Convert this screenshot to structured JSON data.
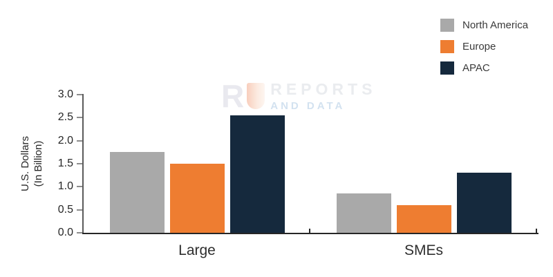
{
  "chart_data": {
    "type": "bar",
    "title": "",
    "categories": [
      "Large",
      "SMEs"
    ],
    "series": [
      {
        "name": "North America",
        "color": "#a9a9a9",
        "values": [
          1.75,
          0.85
        ]
      },
      {
        "name": "Europe",
        "color": "#ee7d31",
        "values": [
          1.5,
          0.6
        ]
      },
      {
        "name": "APAC",
        "color": "#15293d",
        "values": [
          2.55,
          1.3
        ]
      }
    ],
    "ylabel": "U.S. Dollars (In Billion)",
    "ylabel_lines": [
      "U.S. Dollars",
      "(In Billion)"
    ],
    "ylim": [
      0,
      3
    ],
    "yticks": [
      "0.0",
      "0.5",
      "1.0",
      "1.5",
      "2.0",
      "2.5",
      "3.0"
    ],
    "grid": false,
    "legend_position": "top-right"
  },
  "legend": {
    "items": [
      {
        "label": "North America",
        "color": "#a9a9a9"
      },
      {
        "label": "Europe",
        "color": "#ee7d31"
      },
      {
        "label": "APAC",
        "color": "#15293d"
      }
    ]
  },
  "watermark": {
    "logo_letter": "R",
    "line1": "REPORTS",
    "line2": "AND DATA"
  },
  "colors": {
    "axis": "#5a5a5a",
    "bottom_axis": "#262626",
    "tick": "#8c8c8c",
    "text": "#262626"
  }
}
